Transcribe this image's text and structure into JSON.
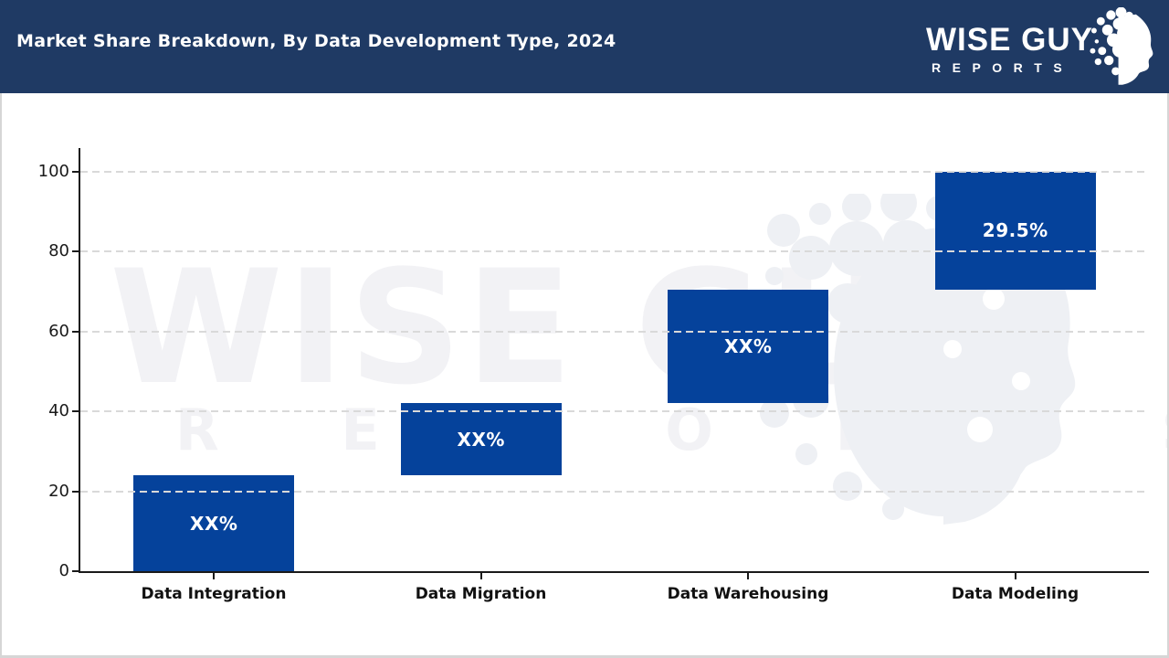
{
  "page": {
    "background": "#ffffff",
    "border_color": "#d6d6d6"
  },
  "header": {
    "background": "#1f3a64",
    "title": "Market Share Breakdown, By Data Development Type, 2024",
    "logo": {
      "primary": "WISE GUY",
      "secondary": "REPORTS",
      "face_icon": "dotted-face-profile"
    }
  },
  "watermark": {
    "primary": "WISE GU",
    "secondary": "R E P O R T S",
    "face_icon": "dotted-face-profile"
  },
  "chart_data": {
    "type": "bar",
    "subtype": "floating-segment-waterfall",
    "title": "Market Share Breakdown, By Data Development Type, 2024",
    "categories": [
      "Data Integration",
      "Data Migration",
      "Data Warehousing",
      "Data Modeling"
    ],
    "bars": [
      {
        "category": "Data Integration",
        "start": 0,
        "end": 24,
        "label": "XX%"
      },
      {
        "category": "Data Migration",
        "start": 24,
        "end": 42,
        "label": "XX%"
      },
      {
        "category": "Data Warehousing",
        "start": 42,
        "end": 70.5,
        "label": "XX%"
      },
      {
        "category": "Data Modeling",
        "start": 70.5,
        "end": 100,
        "label": "29.5%"
      }
    ],
    "ylim": [
      0,
      100
    ],
    "yticks": [
      0,
      20,
      40,
      60,
      80,
      100
    ],
    "xlabel": "",
    "ylabel": "",
    "legend": "none",
    "grid": "horizontal-dashed",
    "bar_color": "#05429b",
    "bar_label_color": "#ffffff",
    "axis_color": "#1a1a1a",
    "grid_color": "#d9d9d9"
  }
}
